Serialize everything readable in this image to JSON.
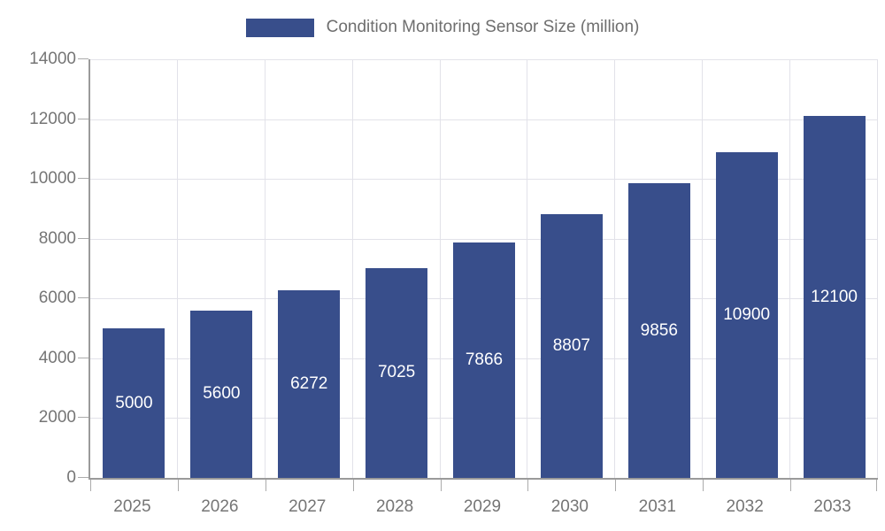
{
  "legend": {
    "label": "Condition Monitoring Sensor Size (million)"
  },
  "chart_data": {
    "type": "bar",
    "title": "Condition Monitoring Sensor Size (million)",
    "categories": [
      "2025",
      "2026",
      "2027",
      "2028",
      "2029",
      "2030",
      "2031",
      "2032",
      "2033"
    ],
    "values": [
      5000,
      5600,
      6272,
      7025,
      7866,
      8807,
      9856,
      10900,
      12100
    ],
    "value_labels": [
      "5000",
      "5600",
      "6272",
      "7025",
      "7866",
      "8807",
      "9856",
      "10900",
      "12100"
    ],
    "xlabel": "",
    "ylabel": "",
    "ylim": [
      0,
      14000
    ],
    "yticks": [
      0,
      2000,
      4000,
      6000,
      8000,
      10000,
      12000,
      14000
    ],
    "ytick_labels": [
      "0",
      "2000",
      "4000",
      "6000",
      "8000",
      "10000",
      "12000",
      "14000"
    ],
    "grid": true,
    "legend_position": "top-center",
    "value_labels_inside_bars": true
  },
  "colors": {
    "bar": "#384e8b",
    "bar_value_text": "#ffffff",
    "axis_text": "#757575",
    "legend_text": "#6e6e6e",
    "gridline": "#e2e2e9",
    "axis_line": "#9a9a9a",
    "background": "#ffffff"
  }
}
